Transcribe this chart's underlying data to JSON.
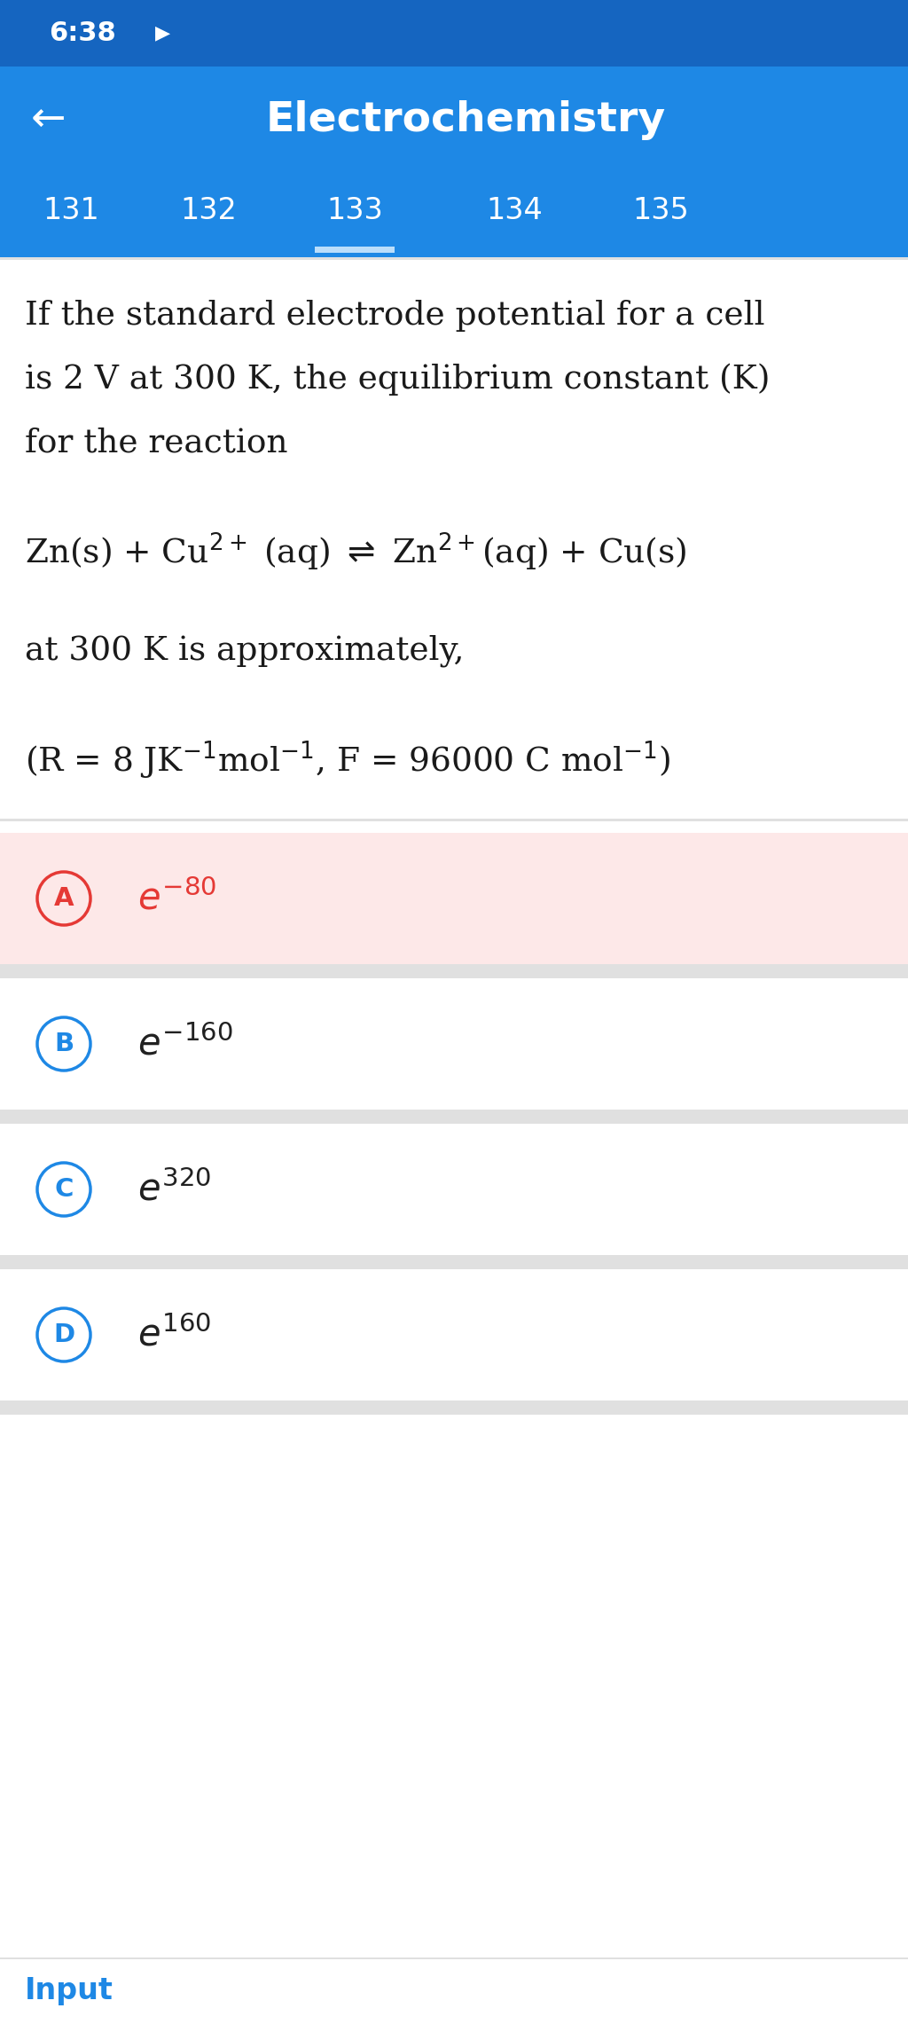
{
  "status_bar_text": "6:38",
  "status_bar_bg": "#1565c0",
  "header_bg": "#1e88e5",
  "header_title": "Electrochemistry",
  "page_numbers": [
    "131",
    "132",
    "133",
    "134",
    "135"
  ],
  "active_page_idx": 2,
  "content_bg": "#ffffff",
  "question_text_line1": "If the standard electrode potential for a cell",
  "question_text_line2": "is 2 V at 300 K, the equilibrium constant (K)",
  "question_text_line3": "for the reaction",
  "after_eq": "at 300 K is approximately,",
  "option_A_bg": "#fde8e8",
  "option_B_bg": "#ffffff",
  "option_C_bg": "#ffffff",
  "option_D_bg": "#ffffff",
  "option_A_circle_color": "#e53935",
  "option_BCD_circle_color": "#1e88e5",
  "option_text_color_A": "#e53935",
  "option_text_color_BCD": "#212121",
  "footer_text": "Input",
  "footer_color": "#1e88e5",
  "separator_color": "#e0e0e0",
  "text_color_dark": "#1a1a1a",
  "underline_color": "#bbdefb",
  "page_num_positions": [
    80,
    235,
    400,
    580,
    745
  ]
}
